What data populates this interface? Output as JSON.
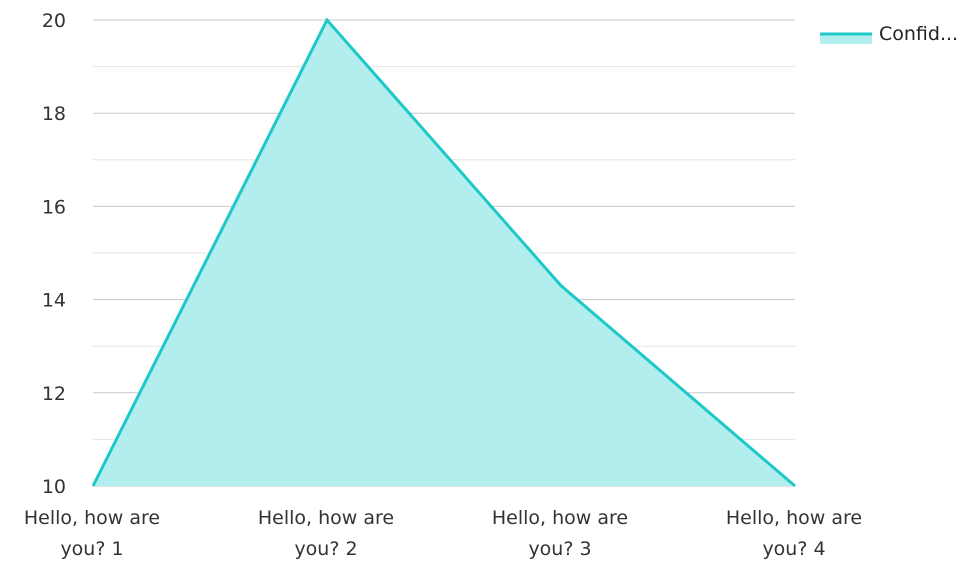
{
  "chart_data": {
    "type": "area",
    "categories": [
      "Hello, how are you? 1",
      "Hello, how are you? 2",
      "Hello, how are you? 3",
      "Hello, how are you? 4"
    ],
    "category_lines": [
      [
        "Hello, how are",
        "you? 1"
      ],
      [
        "Hello, how are",
        "you? 2"
      ],
      [
        "Hello, how are",
        "you? 3"
      ],
      [
        "Hello, how are",
        "you? 4"
      ]
    ],
    "series": [
      {
        "name": "Confid...",
        "values": [
          10,
          20,
          14.3,
          10
        ]
      }
    ],
    "ylim": [
      10,
      20
    ],
    "yticks": [
      "10",
      "12",
      "14",
      "16",
      "18",
      "20"
    ],
    "grid": true,
    "minor_grid": true,
    "legend_position": "top-right",
    "colors": {
      "line": "#1ec8c8",
      "fill": "#b2eeee",
      "grid_major": "#c8c8c8",
      "grid_minor": "#e6e6e6"
    }
  }
}
